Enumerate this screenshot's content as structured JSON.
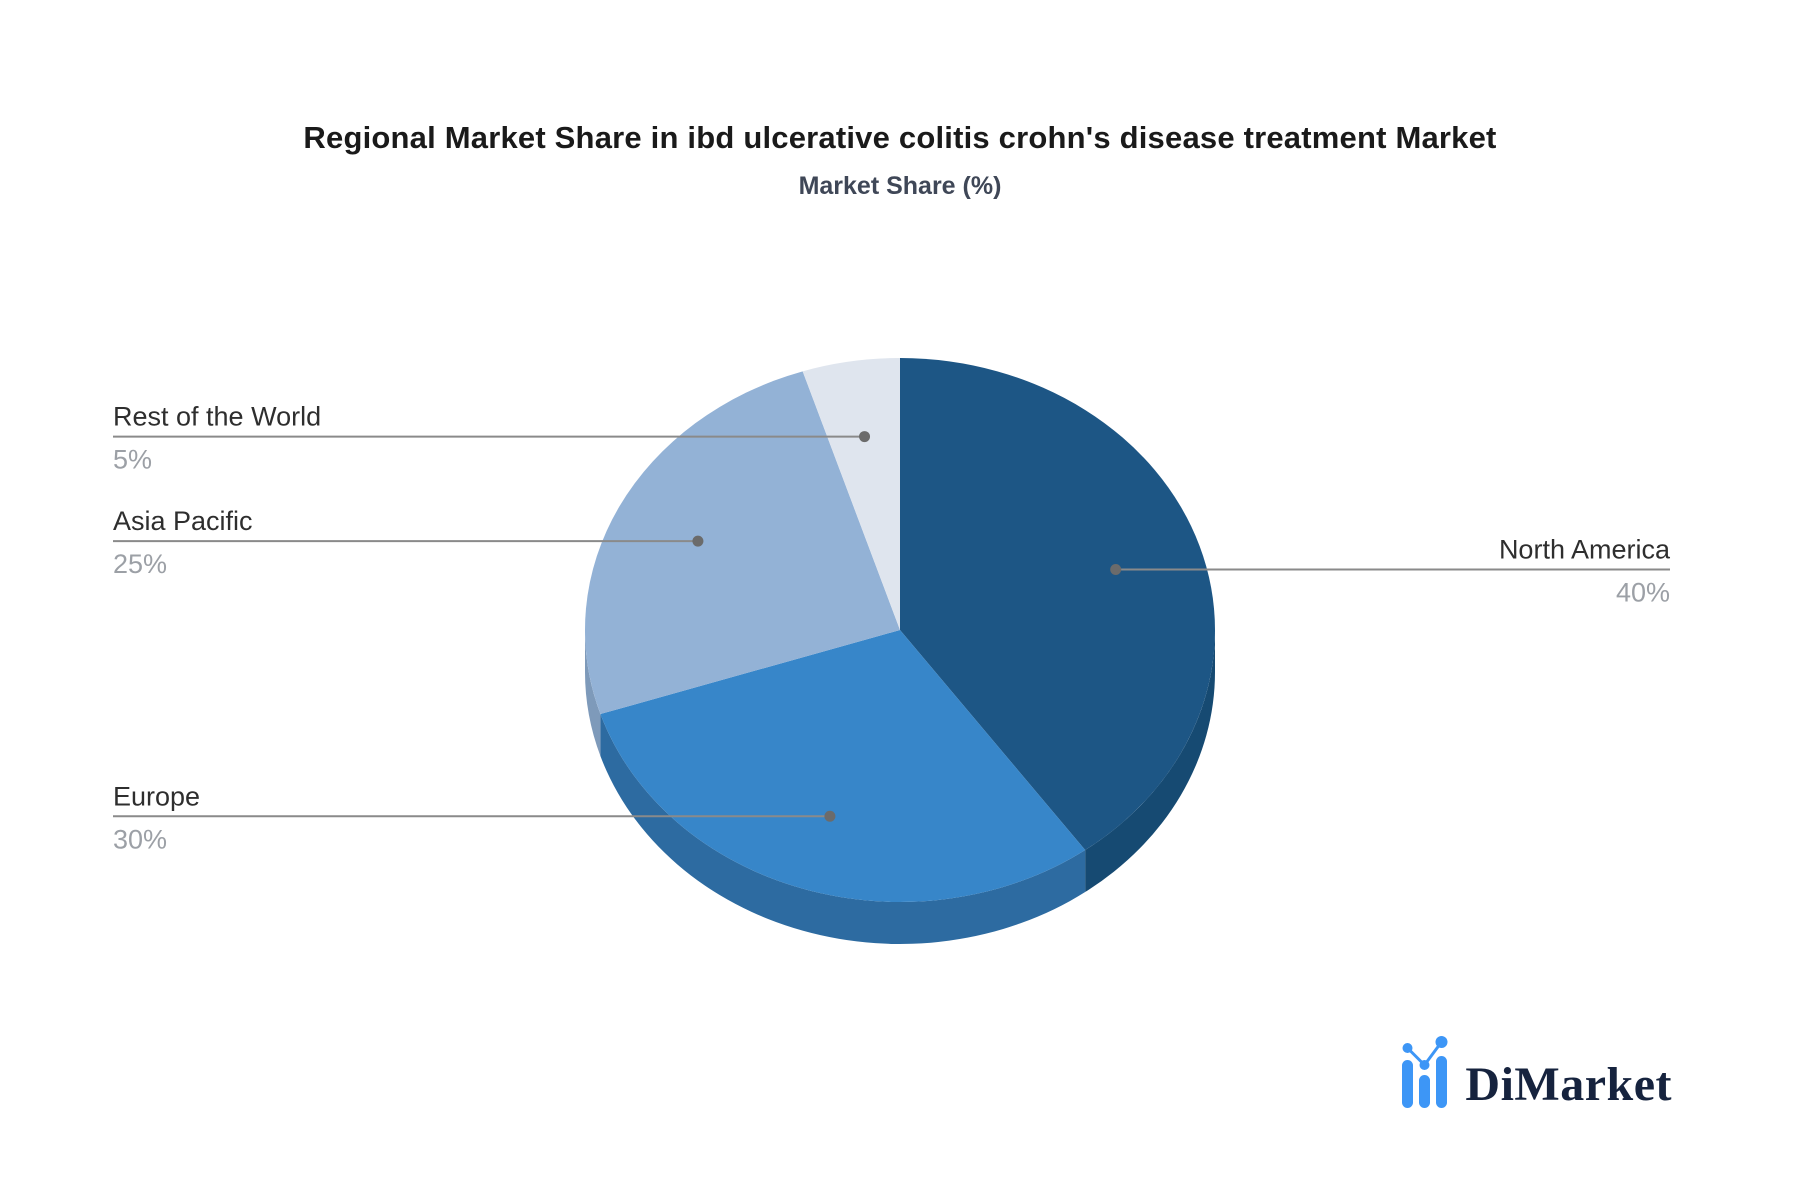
{
  "chart_data": {
    "type": "pie",
    "title": "Regional Market Share in ibd ulcerative colitis crohn's disease treatment Market",
    "subtitle": "Market Share (%)",
    "unit": "%",
    "style": "3d-pie",
    "start_angle_deg": 0,
    "direction": "clockwise",
    "legend_position": "leader-labels",
    "categories": [
      "North America",
      "Europe",
      "Asia Pacific",
      "Rest of the World"
    ],
    "values": [
      40,
      30,
      25,
      5
    ],
    "slices": [
      {
        "label": "North America",
        "value": 40,
        "display": "40%",
        "color": "#1D5685",
        "side_color": "#164A72",
        "label_side": "right"
      },
      {
        "label": "Europe",
        "value": 30,
        "display": "30%",
        "color": "#3786C9",
        "side_color": "#2D6BA1",
        "label_side": "left"
      },
      {
        "label": "Asia Pacific",
        "value": 25,
        "display": "25%",
        "color": "#93B2D6",
        "side_color": "#7E9ABA",
        "label_side": "left"
      },
      {
        "label": "Rest of the World",
        "value": 5,
        "display": "5%",
        "color": "#DFE5EE",
        "side_color": "#C6CFDD",
        "label_side": "left"
      }
    ],
    "colors": {
      "label_text": "#2E2E2E",
      "value_text": "#9CA0A6",
      "leader_line": "#8A8A8A",
      "leader_dot": "#6B6B6B"
    }
  },
  "branding": {
    "logo_text": "DiMarket",
    "logo_icon": "bar-line-chart-icon",
    "text_color": "#16233E",
    "icon_color": "#3D96F6"
  }
}
